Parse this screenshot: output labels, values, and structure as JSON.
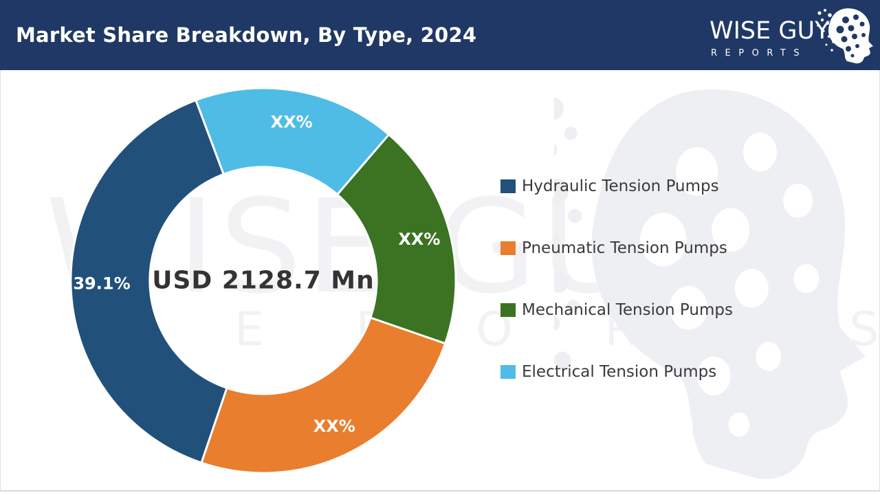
{
  "header": {
    "title": "Market Share Breakdown, By Type, 2024",
    "bg_color": "#203865",
    "logo": {
      "line1": "WISE GUY",
      "line2": "REPORTS"
    }
  },
  "watermark": {
    "line1": "WISE GUY",
    "line2": "R E P O R T S"
  },
  "center_label": "USD 2128.7 Mn",
  "chart_data": {
    "type": "pie",
    "subtype": "donut",
    "title": "Market Share Breakdown, By Type, 2024",
    "center_text": "USD 2128.7 Mn",
    "start_angle_deg": 110.5,
    "direction": "counterclockwise",
    "legend_position": "right",
    "slices": [
      {
        "name": "Hydraulic Tension Pumps",
        "value_pct": 39.1,
        "display_label": "39.1%",
        "color": "#21507B"
      },
      {
        "name": "Pneumatic Tension Pumps",
        "value_pct": 24.9,
        "display_label": "XX%",
        "color": "#E87E2E"
      },
      {
        "name": "Mechanical Tension Pumps",
        "value_pct": 19.0,
        "display_label": "XX%",
        "color": "#3B7323"
      },
      {
        "name": "Electrical Tension Pumps",
        "value_pct": 17.0,
        "display_label": "XX%",
        "color": "#4FBCE5"
      }
    ]
  }
}
